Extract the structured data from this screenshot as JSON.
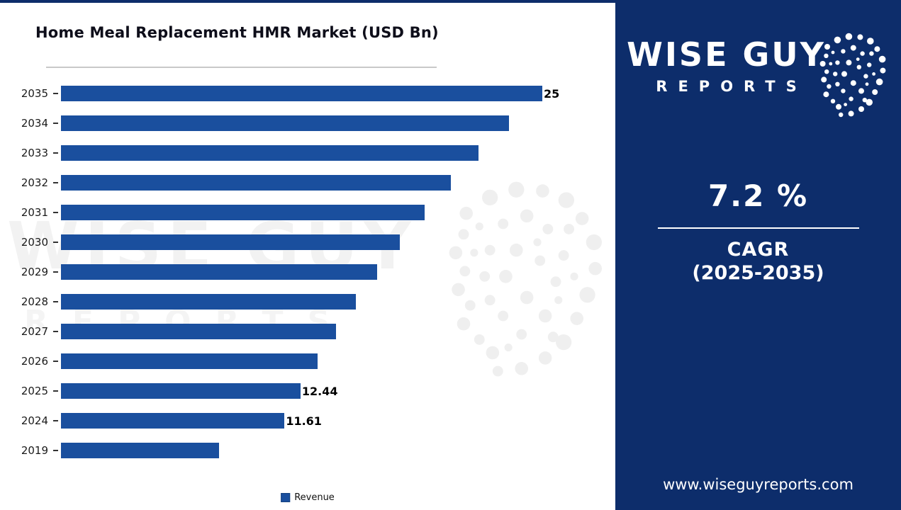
{
  "chart": {
    "title": "Home Meal Replacement HMR Market (USD Bn)",
    "legend_label": "Revenue",
    "bar_color": "#1a4f9e"
  },
  "chart_data": {
    "type": "bar",
    "orientation": "horizontal",
    "title": "Home Meal Replacement HMR Market (USD Bn)",
    "categories": [
      "2035",
      "2034",
      "2033",
      "2032",
      "2031",
      "2030",
      "2029",
      "2028",
      "2027",
      "2026",
      "2025",
      "2024",
      "2019"
    ],
    "values": [
      25,
      23.26,
      21.7,
      20.24,
      18.88,
      17.61,
      16.43,
      15.33,
      14.3,
      13.34,
      12.44,
      11.61,
      8.2
    ],
    "data_labels": [
      "25",
      "",
      "",
      "",
      "",
      "",
      "",
      "",
      "",
      "",
      "12.44",
      "11.61",
      ""
    ],
    "xlim": [
      0,
      25
    ],
    "legend": [
      "Revenue"
    ],
    "legend_position": "bottom",
    "grid": false
  },
  "side_panel": {
    "background": "#0d2d6b",
    "logo_line1": "WISE GUY",
    "logo_line2": "REPORTS",
    "cagr_value": "7.2 %",
    "cagr_label_line1": "CAGR",
    "cagr_label_line2": "(2025-2035)",
    "website": "www.wiseguyreports.com"
  },
  "watermark": {
    "line1": "WISE GUY",
    "line2": "REPORTS"
  }
}
